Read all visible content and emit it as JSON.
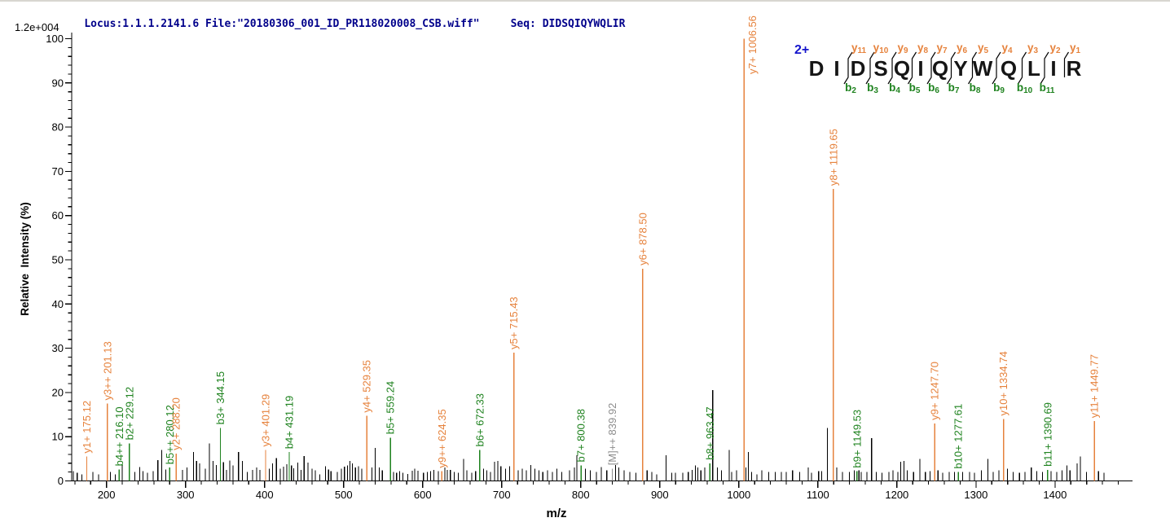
{
  "header": {
    "locus_file": "Locus:1.1.1.2141.6 File:\"20180306_001_ID_PR118020008_CSB.wiff\"",
    "seq": "Seq: DIDSQIQYWQLIR"
  },
  "colors": {
    "y_ion": "#E6823C",
    "b_ion": "#1E821E",
    "noise": "#000000",
    "precursor": "#8C8C8C",
    "charge_blue": "#1414CC",
    "header_navy": "#00008B",
    "axis": "#000000"
  },
  "annotation": {
    "charge": "2+",
    "residues": [
      "D",
      "I",
      "D",
      "S",
      "Q",
      "I",
      "Q",
      "Y",
      "W",
      "Q",
      "L",
      "I",
      "R"
    ],
    "y_labels": [
      "y11",
      "y10",
      "y9",
      "y8",
      "y7",
      "y6",
      "y5",
      "y4",
      "y3",
      "y2",
      "y1"
    ],
    "b_labels": [
      "b2",
      "b3",
      "b4",
      "b5",
      "b6",
      "b7",
      "b8",
      "b9",
      "b10",
      "b11"
    ]
  },
  "chart_data": {
    "type": "bar",
    "subtype": "ms2-centroid-mass-spectrum",
    "title": "",
    "xlabel": "m/z",
    "ylabel": "Relative  Intensity (%)",
    "intensity_scale_label": "1.2e+004",
    "x_range": [
      156,
      1496
    ],
    "ylim": [
      0,
      100
    ],
    "grid": false,
    "x_ticks": {
      "major_start": 200,
      "major_end": 1400,
      "major_step": 100,
      "minor_start": 160,
      "minor_end": 1480,
      "minor_step": 20
    },
    "y_ticks": {
      "major_step": 10,
      "minor_step": 2
    },
    "labeled_peaks": [
      {
        "label": "y1+ 175.12",
        "mz": 175.12,
        "intensity": 5.5,
        "ion": "y"
      },
      {
        "label": "y3++ 201.13",
        "mz": 201.13,
        "intensity": 17.5,
        "ion": "y"
      },
      {
        "label": "b4++ 216.10",
        "mz": 216.1,
        "intensity": 2.6,
        "ion": "b"
      },
      {
        "label": "b2+ 229.12",
        "mz": 229.12,
        "intensity": 8.5,
        "ion": "b"
      },
      {
        "label": "b5++ 280.12",
        "mz": 280.12,
        "intensity": 3.0,
        "ion": "b"
      },
      {
        "label": "y2+ 288.20",
        "mz": 288.2,
        "intensity": 6.2,
        "ion": "y"
      },
      {
        "label": "b3+ 344.15",
        "mz": 344.15,
        "intensity": 12.0,
        "ion": "b"
      },
      {
        "label": "y3+ 401.29",
        "mz": 401.29,
        "intensity": 7.0,
        "ion": "y"
      },
      {
        "label": "b4+ 431.19",
        "mz": 431.19,
        "intensity": 6.5,
        "ion": "b"
      },
      {
        "label": "y4+ 529.35",
        "mz": 529.35,
        "intensity": 14.7,
        "ion": "y"
      },
      {
        "label": "b5+ 559.24",
        "mz": 559.24,
        "intensity": 9.8,
        "ion": "b"
      },
      {
        "label": "y9++ 624.35",
        "mz": 624.35,
        "intensity": 2.2,
        "ion": "y"
      },
      {
        "label": "b6+ 672.33",
        "mz": 672.33,
        "intensity": 7.0,
        "ion": "b"
      },
      {
        "label": "y5+ 715.43",
        "mz": 715.43,
        "intensity": 29.0,
        "ion": "y"
      },
      {
        "label": "b7+ 800.38",
        "mz": 800.38,
        "intensity": 3.5,
        "ion": "b"
      },
      {
        "label": "[M]++ 839.92",
        "mz": 839.92,
        "intensity": 2.8,
        "ion": "M"
      },
      {
        "label": "y6+ 878.50",
        "mz": 878.5,
        "intensity": 48.0,
        "ion": "y"
      },
      {
        "label": "b8+ 963.47",
        "mz": 963.47,
        "intensity": 4.0,
        "ion": "b"
      },
      {
        "label": "y7+ 1006.56",
        "mz": 1006.56,
        "intensity": 100.0,
        "ion": "y"
      },
      {
        "label": "y8+ 1119.65",
        "mz": 1119.65,
        "intensity": 66.0,
        "ion": "y"
      },
      {
        "label": "b9+ 1149.53",
        "mz": 1149.53,
        "intensity": 2.2,
        "ion": "b"
      },
      {
        "label": "y9+ 1247.70",
        "mz": 1247.7,
        "intensity": 13.0,
        "ion": "y"
      },
      {
        "label": "b10+ 1277.61",
        "mz": 1277.61,
        "intensity": 2.0,
        "ion": "b"
      },
      {
        "label": "y10+ 1334.74",
        "mz": 1334.74,
        "intensity": 14.0,
        "ion": "y"
      },
      {
        "label": "b11+ 1390.69",
        "mz": 1390.69,
        "intensity": 2.5,
        "ion": "b"
      },
      {
        "label": "y11+ 1449.77",
        "mz": 1449.77,
        "intensity": 13.5,
        "ion": "y"
      }
    ],
    "noise_peaks": [
      [
        158,
        2.2
      ],
      [
        163,
        1.8
      ],
      [
        169,
        1.5
      ],
      [
        183,
        2.0
      ],
      [
        190,
        1.5
      ],
      [
        205,
        2.0
      ],
      [
        211,
        1.5
      ],
      [
        220,
        3.6
      ],
      [
        236,
        2.0
      ],
      [
        242,
        3.1
      ],
      [
        246,
        2.2
      ],
      [
        252,
        1.8
      ],
      [
        259,
        2.2
      ],
      [
        265,
        4.7
      ],
      [
        270,
        7.0
      ],
      [
        275,
        2.6
      ],
      [
        296,
        2.5
      ],
      [
        302,
        3.0
      ],
      [
        310,
        6.5
      ],
      [
        314,
        4.5
      ],
      [
        318,
        4.0
      ],
      [
        325,
        2.8
      ],
      [
        330,
        8.5
      ],
      [
        335,
        4.5
      ],
      [
        339,
        3.6
      ],
      [
        348,
        4.2
      ],
      [
        352,
        2.5
      ],
      [
        356,
        4.6
      ],
      [
        360,
        3.5
      ],
      [
        367,
        6.5
      ],
      [
        372,
        4.5
      ],
      [
        378,
        2.0
      ],
      [
        385,
        2.5
      ],
      [
        390,
        3.0
      ],
      [
        394,
        2.5
      ],
      [
        406,
        2.8
      ],
      [
        410,
        4.0
      ],
      [
        415,
        5.2
      ],
      [
        420,
        2.8
      ],
      [
        424,
        3.2
      ],
      [
        428,
        3.8
      ],
      [
        434,
        3.5
      ],
      [
        437,
        2.9
      ],
      [
        442,
        4.1
      ],
      [
        446,
        2.5
      ],
      [
        450,
        5.6
      ],
      [
        455,
        4.1
      ],
      [
        460,
        2.8
      ],
      [
        464,
        2.4
      ],
      [
        470,
        1.5
      ],
      [
        477,
        3.3
      ],
      [
        481,
        2.6
      ],
      [
        484,
        2.2
      ],
      [
        492,
        2.0
      ],
      [
        497,
        2.8
      ],
      [
        501,
        3.2
      ],
      [
        505,
        3.5
      ],
      [
        508,
        4.5
      ],
      [
        511,
        4.0
      ],
      [
        515,
        3.0
      ],
      [
        519,
        3.3
      ],
      [
        523,
        2.8
      ],
      [
        536,
        3.0
      ],
      [
        540,
        7.5
      ],
      [
        545,
        3.0
      ],
      [
        549,
        2.4
      ],
      [
        563,
        2.0
      ],
      [
        567,
        1.8
      ],
      [
        571,
        2.2
      ],
      [
        575,
        1.8
      ],
      [
        581,
        1.6
      ],
      [
        587,
        2.3
      ],
      [
        590,
        2.8
      ],
      [
        594,
        2.3
      ],
      [
        601,
        1.8
      ],
      [
        606,
        2.0
      ],
      [
        610,
        2.2
      ],
      [
        614,
        2.5
      ],
      [
        620,
        2.2
      ],
      [
        628,
        3.0
      ],
      [
        631,
        2.5
      ],
      [
        635,
        2.5
      ],
      [
        640,
        2.0
      ],
      [
        645,
        1.8
      ],
      [
        652,
        5.0
      ],
      [
        656,
        2.4
      ],
      [
        662,
        1.8
      ],
      [
        667,
        2.2
      ],
      [
        677,
        2.8
      ],
      [
        681,
        2.4
      ],
      [
        686,
        2.0
      ],
      [
        691,
        4.3
      ],
      [
        695,
        4.5
      ],
      [
        699,
        3.3
      ],
      [
        705,
        2.8
      ],
      [
        710,
        3.3
      ],
      [
        721,
        2.4
      ],
      [
        726,
        2.8
      ],
      [
        731,
        2.4
      ],
      [
        737,
        3.6
      ],
      [
        742,
        2.8
      ],
      [
        747,
        2.4
      ],
      [
        752,
        2.0
      ],
      [
        758,
        2.4
      ],
      [
        764,
        2.0
      ],
      [
        770,
        2.8
      ],
      [
        776,
        2.0
      ],
      [
        786,
        2.4
      ],
      [
        792,
        3.0
      ],
      [
        795,
        5.8
      ],
      [
        806,
        2.8
      ],
      [
        812,
        2.4
      ],
      [
        820,
        2.0
      ],
      [
        826,
        3.1
      ],
      [
        833,
        2.4
      ],
      [
        844,
        3.6
      ],
      [
        848,
        3.0
      ],
      [
        855,
        2.4
      ],
      [
        862,
        2.0
      ],
      [
        870,
        1.8
      ],
      [
        884,
        2.4
      ],
      [
        890,
        2.0
      ],
      [
        896,
        1.5
      ],
      [
        908,
        5.8
      ],
      [
        915,
        1.8
      ],
      [
        920,
        1.8
      ],
      [
        929,
        1.8
      ],
      [
        936,
        2.0
      ],
      [
        941,
        2.5
      ],
      [
        945,
        3.5
      ],
      [
        948,
        3.0
      ],
      [
        952,
        2.4
      ],
      [
        957,
        3.0
      ],
      [
        967,
        20.5
      ],
      [
        973,
        3.0
      ],
      [
        978,
        2.4
      ],
      [
        988,
        7.0
      ],
      [
        991,
        2.0
      ],
      [
        997,
        2.4
      ],
      [
        1009,
        3.0
      ],
      [
        1012,
        6.5
      ],
      [
        1016,
        2.0
      ],
      [
        1023,
        1.5
      ],
      [
        1029,
        2.4
      ],
      [
        1038,
        2.0
      ],
      [
        1046,
        2.0
      ],
      [
        1054,
        2.0
      ],
      [
        1060,
        2.0
      ],
      [
        1068,
        2.4
      ],
      [
        1077,
        2.0
      ],
      [
        1088,
        3.0
      ],
      [
        1092,
        1.8
      ],
      [
        1101,
        2.2
      ],
      [
        1105,
        2.2
      ],
      [
        1112,
        12.0
      ],
      [
        1124,
        3.0
      ],
      [
        1131,
        2.0
      ],
      [
        1140,
        2.0
      ],
      [
        1146,
        2.4
      ],
      [
        1152,
        2.4
      ],
      [
        1155,
        2.0
      ],
      [
        1162,
        2.0
      ],
      [
        1168,
        9.7
      ],
      [
        1174,
        2.0
      ],
      [
        1181,
        1.8
      ],
      [
        1190,
        2.0
      ],
      [
        1195,
        2.4
      ],
      [
        1201,
        2.0
      ],
      [
        1205,
        4.3
      ],
      [
        1209,
        4.5
      ],
      [
        1213,
        2.4
      ],
      [
        1221,
        2.0
      ],
      [
        1229,
        5.0
      ],
      [
        1236,
        2.0
      ],
      [
        1242,
        2.2
      ],
      [
        1252,
        2.4
      ],
      [
        1258,
        1.8
      ],
      [
        1266,
        2.0
      ],
      [
        1273,
        2.0
      ],
      [
        1283,
        2.0
      ],
      [
        1292,
        2.0
      ],
      [
        1298,
        1.8
      ],
      [
        1307,
        2.4
      ],
      [
        1315,
        5.0
      ],
      [
        1322,
        2.0
      ],
      [
        1329,
        2.4
      ],
      [
        1340,
        2.8
      ],
      [
        1347,
        2.0
      ],
      [
        1355,
        1.8
      ],
      [
        1362,
        2.0
      ],
      [
        1370,
        3.0
      ],
      [
        1377,
        2.2
      ],
      [
        1384,
        2.0
      ],
      [
        1395,
        2.2
      ],
      [
        1402,
        2.0
      ],
      [
        1409,
        2.4
      ],
      [
        1415,
        3.5
      ],
      [
        1419,
        2.4
      ],
      [
        1428,
        4.0
      ],
      [
        1432,
        5.5
      ],
      [
        1440,
        2.0
      ],
      [
        1455,
        2.2
      ],
      [
        1462,
        1.8
      ]
    ]
  }
}
